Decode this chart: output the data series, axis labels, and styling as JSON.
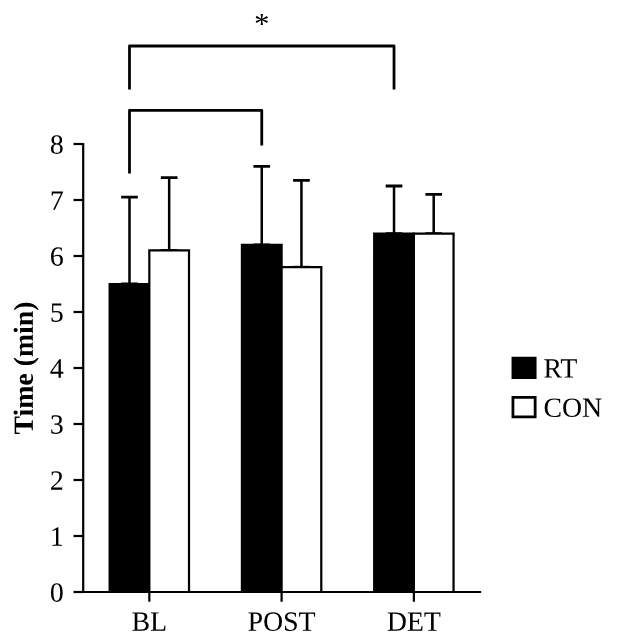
{
  "chart_data": {
    "type": "bar",
    "ylabel": "Time (min)",
    "categories": [
      "BL",
      "POST",
      "DET"
    ],
    "series": [
      {
        "name": "RT",
        "color": "#000000",
        "values": [
          5.5,
          6.2,
          6.4
        ],
        "errors": [
          [
            5.5,
            7.05
          ],
          [
            6.2,
            7.6
          ],
          [
            6.4,
            7.25
          ]
        ]
      },
      {
        "name": "CON",
        "color": "#ffffff",
        "values": [
          6.1,
          5.8,
          6.4
        ],
        "errors": [
          [
            6.1,
            7.4
          ],
          [
            5.8,
            7.35
          ],
          [
            6.4,
            7.1
          ]
        ]
      }
    ],
    "ylim": [
      0,
      8
    ],
    "yticks": [
      0,
      1,
      2,
      3,
      4,
      5,
      6,
      7,
      8
    ],
    "grid": false,
    "legend": "right",
    "annotations": [
      "*"
    ]
  }
}
